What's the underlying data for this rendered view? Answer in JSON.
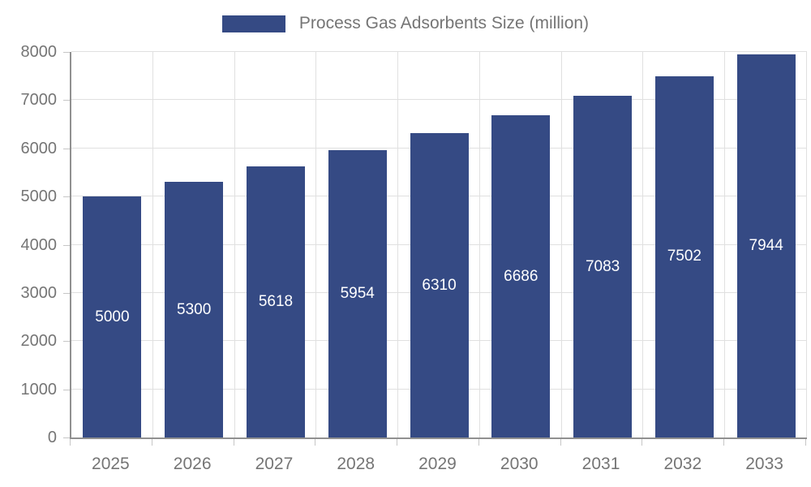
{
  "chart_data": {
    "type": "bar",
    "title": "",
    "legend": "Process Gas Adsorbents Size (million)",
    "legend_position": "top-center",
    "categories": [
      "2025",
      "2026",
      "2027",
      "2028",
      "2029",
      "2030",
      "2031",
      "2032",
      "2033"
    ],
    "values": [
      5000,
      5300,
      5618,
      5954,
      6310,
      6686,
      7083,
      7502,
      7944
    ],
    "xlabel": "",
    "ylabel": "",
    "ylim": [
      0,
      8000
    ],
    "yticks": [
      0,
      1000,
      2000,
      3000,
      4000,
      5000,
      6000,
      7000,
      8000
    ],
    "grid": true,
    "bar_value_labels_shown": true
  },
  "colors": {
    "bar": "#354A84",
    "grid": "#e0e0e0",
    "axis": "#909090",
    "tick": "#c6c6c6",
    "label_text": "#757575",
    "bar_label_text": "#ffffff",
    "background": "#ffffff"
  }
}
